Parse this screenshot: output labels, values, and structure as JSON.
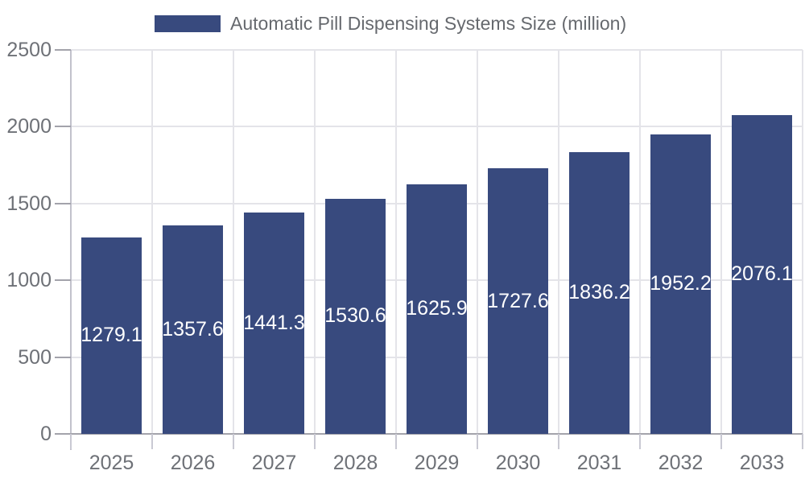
{
  "legend": {
    "label": "Automatic Pill Dispensing Systems Size (million)"
  },
  "chart_data": {
    "type": "bar",
    "title": "Automatic Pill Dispensing Systems Size (million)",
    "series_name": "Automatic Pill Dispensing Systems Size (million)",
    "categories": [
      "2025",
      "2026",
      "2027",
      "2028",
      "2029",
      "2030",
      "2031",
      "2032",
      "2033"
    ],
    "values": [
      1279.1,
      1357.6,
      1441.3,
      1530.6,
      1625.9,
      1727.6,
      1836.2,
      1952.2,
      2076.1
    ],
    "value_labels": [
      "1279.1",
      "1357.6",
      "1441.3",
      "1530.6",
      "1625.9",
      "1727.6",
      "1836.2",
      "1952.2",
      "2076.1"
    ],
    "xlabel": "",
    "ylabel": "",
    "ylim": [
      0,
      2500
    ],
    "ytick_step": 500,
    "yticks": [
      "0",
      "500",
      "1000",
      "1500",
      "2000",
      "2500"
    ],
    "grid": true,
    "legend_position": "top",
    "label_position": "inside-center"
  },
  "colors": {
    "bar": "#384a7e",
    "bar_label": "#ffffff",
    "gridline": "#e4e4e9",
    "x_axis_line": "#a3a3ab",
    "y_axis_line": "#c2c2cc",
    "x_tick": "#c9c9d3",
    "y_tick": "#a3a3ab",
    "axis_text": "#6e7177",
    "legend_text": "#66696e"
  }
}
